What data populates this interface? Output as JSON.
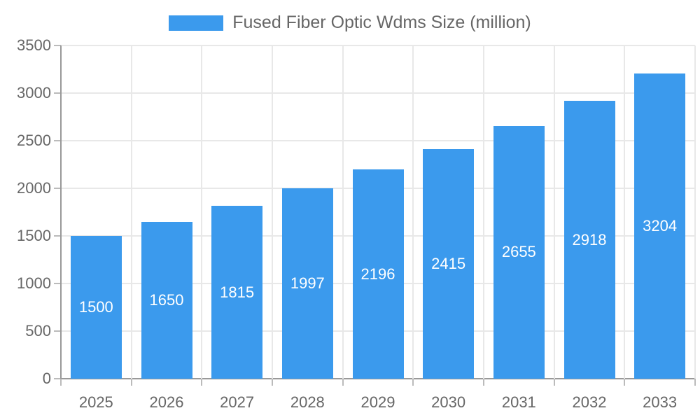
{
  "chart_data": {
    "type": "bar",
    "title": "Fused Fiber Optic Wdms Size (million)",
    "series_name": "Fused Fiber Optic Wdms Size (million)",
    "categories": [
      "2025",
      "2026",
      "2027",
      "2028",
      "2029",
      "2030",
      "2031",
      "2032",
      "2033"
    ],
    "values": [
      1500,
      1650,
      1815,
      1997,
      2196,
      2415,
      2655,
      2918,
      3204
    ],
    "value_labels": [
      "1500",
      "1650",
      "1815",
      "1997",
      "2196",
      "2415",
      "2655",
      "2918",
      "3204"
    ],
    "xlabel": "",
    "ylabel": "",
    "ylim": [
      0,
      3500
    ],
    "ytick_step": 500,
    "ytick_labels": [
      "0",
      "500",
      "1000",
      "1500",
      "2000",
      "2500",
      "3000",
      "3500"
    ],
    "grid": true,
    "legend_position": "top",
    "bar_color": "#3B9AED",
    "value_label_color": "#FFFFFF",
    "axis_text_color": "#666666",
    "gridline_color": "#E8E8E8",
    "axis_line_color": "#999999",
    "tick_mark_color": "#BBBBBB",
    "background_color": "#FFFFFF"
  }
}
